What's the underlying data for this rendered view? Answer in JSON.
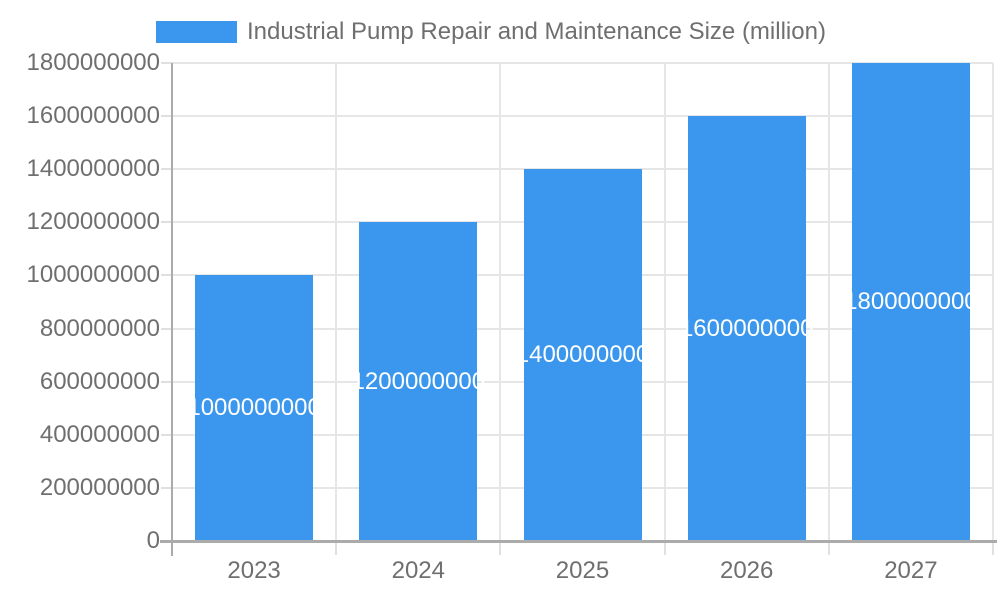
{
  "chart_data": {
    "type": "bar",
    "title": "",
    "legend": "Industrial Pump Repair and Maintenance Size (million)",
    "legend_position": "top",
    "categories": [
      "2023",
      "2024",
      "2025",
      "2026",
      "2027"
    ],
    "series": [
      {
        "name": "Industrial Pump Repair and Maintenance Size (million)",
        "values": [
          1000000000,
          1200000000,
          1400000000,
          1600000000,
          1800000000
        ]
      }
    ],
    "bar_value_labels": [
      "1000000000",
      "1200000000",
      "1400000000",
      "1600000000",
      "1800000000"
    ],
    "y_ticks": [
      0,
      200000000,
      400000000,
      600000000,
      800000000,
      1000000000,
      1200000000,
      1400000000,
      1600000000,
      1800000000
    ],
    "ylim": [
      0,
      1800000000
    ],
    "xlabel": "",
    "ylabel": "",
    "grid": true,
    "colors": {
      "bar": "#3b97ed",
      "grid": "#e6e6e6",
      "tick": "#e0e0e0",
      "axis": "#ababab",
      "text": "#6f6f6f",
      "bar_label": "#ffffff",
      "background": "#ffffff"
    }
  }
}
